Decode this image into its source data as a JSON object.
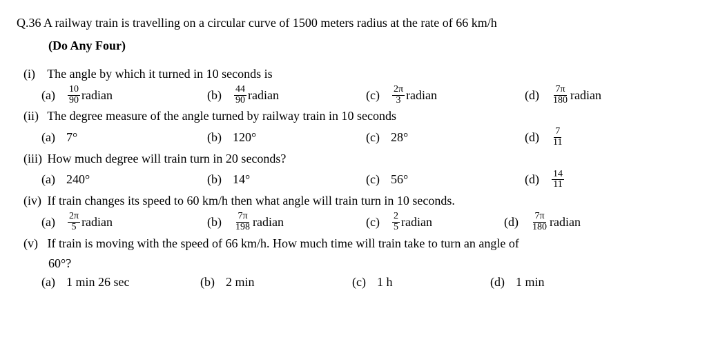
{
  "question": {
    "number": "Q.36",
    "stem": "A railway train is travelling on a circular curve of 1500 meters radius at the rate of 66 km/h",
    "instruction": "(Do Any Four)"
  },
  "parts": [
    {
      "roman": "(i)",
      "text": "The angle by which it turned in 10 seconds is",
      "options": [
        {
          "label": "(a)",
          "frac_num": "10",
          "frac_den": "90",
          "suffix": " radian"
        },
        {
          "label": "(b)",
          "frac_num": "44",
          "frac_den": "90",
          "suffix": " radian"
        },
        {
          "label": "(c)",
          "frac_num": "2π",
          "frac_den": "3",
          "suffix": " radian"
        },
        {
          "label": "(d)",
          "frac_num": "7π",
          "frac_den": "180",
          "suffix": " radian"
        }
      ]
    },
    {
      "roman": "(ii)",
      "text": "The degree measure of the angle turned by railway train in 10 seconds",
      "options": [
        {
          "label": "(a)",
          "plain": "7°"
        },
        {
          "label": "(b)",
          "plain": "120°"
        },
        {
          "label": "(c)",
          "plain": "28°"
        },
        {
          "label": "(d)",
          "frac_num": "7",
          "frac_den": "11"
        }
      ]
    },
    {
      "roman": "(iii)",
      "text": "How much degree will train turn in 20 seconds?",
      "options": [
        {
          "label": "(a)",
          "plain": "240°"
        },
        {
          "label": "(b)",
          "plain": "14°"
        },
        {
          "label": "(c)",
          "plain": "56°"
        },
        {
          "label": "(d)",
          "frac_num": "14",
          "frac_den": "11"
        }
      ]
    },
    {
      "roman": "(iv)",
      "text": "If train changes its speed to 60 km/h then what angle will train turn in 10 seconds.",
      "options": [
        {
          "label": "(a)",
          "frac_num": "2π",
          "frac_den": "5",
          "suffix": " radian"
        },
        {
          "label": "(b)",
          "frac_num": "7π",
          "frac_den": "198",
          "suffix": " radian"
        },
        {
          "label": "(c)",
          "frac_num": "2",
          "frac_den": "5",
          "suffix": " radian"
        },
        {
          "label": "(d)",
          "frac_num": "7π",
          "frac_den": "180",
          "suffix": " radian"
        }
      ]
    },
    {
      "roman": "(v)",
      "text_a": "If train is moving with the speed of 66 km/h. How much time will train take to turn an angle of",
      "text_b": "60°?",
      "options": [
        {
          "label": "(a)",
          "plain": "1 min 26 sec"
        },
        {
          "label": "(b)",
          "plain": "2 min"
        },
        {
          "label": "(c)",
          "plain": "1 h"
        },
        {
          "label": "(d)",
          "plain": "1 min"
        }
      ]
    }
  ]
}
